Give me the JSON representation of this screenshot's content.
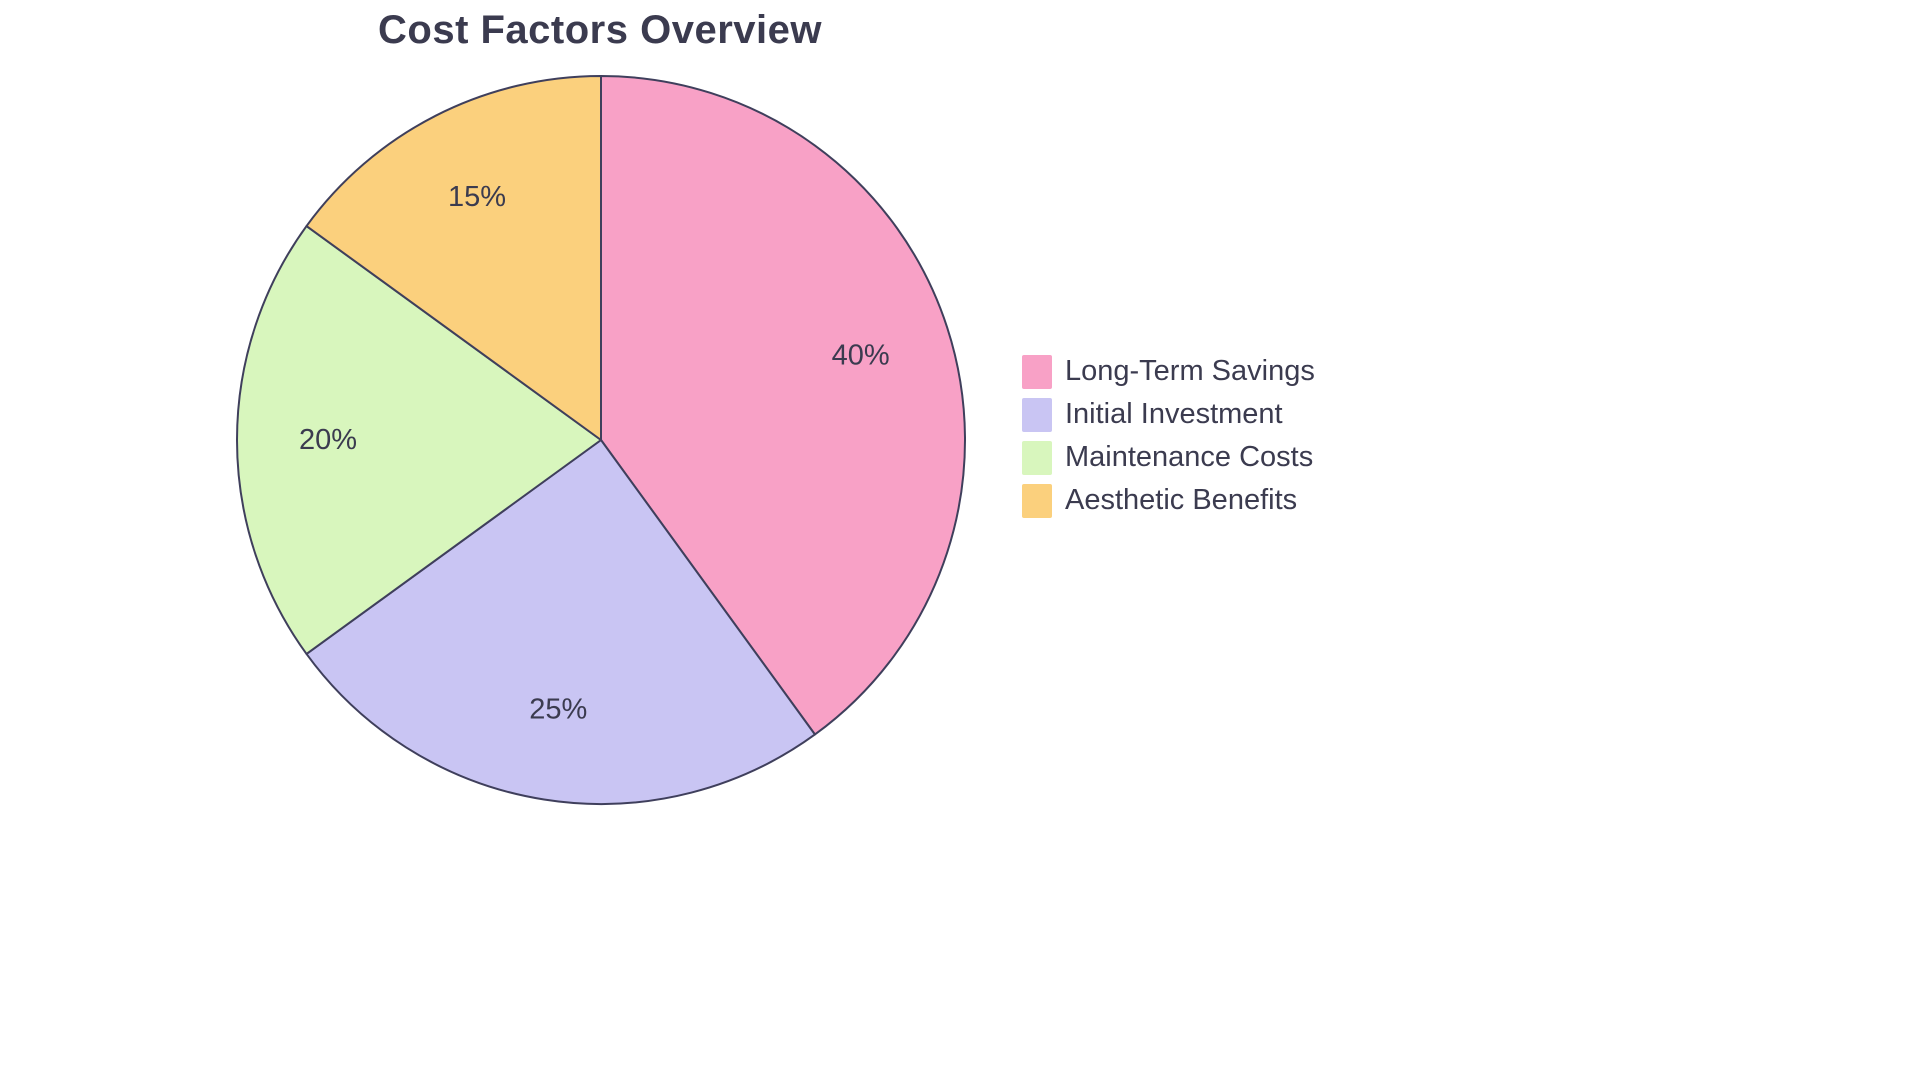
{
  "chart_data": {
    "type": "pie",
    "title": "Cost Factors Overview",
    "legend_position": "right",
    "background": "#FFFFFF",
    "stroke_color": "#3F3F5C",
    "label_color": "#3B3B4F",
    "categories": [
      "Long-Term Savings",
      "Initial Investment",
      "Maintenance Costs",
      "Aesthetic Benefits"
    ],
    "values": [
      40,
      25,
      20,
      15
    ],
    "segments": [
      {
        "label": "Long-Term Savings",
        "value": 40,
        "pct_label": "40%",
        "color": "#F8A1C6"
      },
      {
        "label": "Initial Investment",
        "value": 25,
        "pct_label": "25%",
        "color": "#C9C5F3"
      },
      {
        "label": "Maintenance Costs",
        "value": 20,
        "pct_label": "20%",
        "color": "#D8F6BD"
      },
      {
        "label": "Aesthetic Benefits",
        "value": 15,
        "pct_label": "15%",
        "color": "#FBD07D"
      }
    ]
  }
}
